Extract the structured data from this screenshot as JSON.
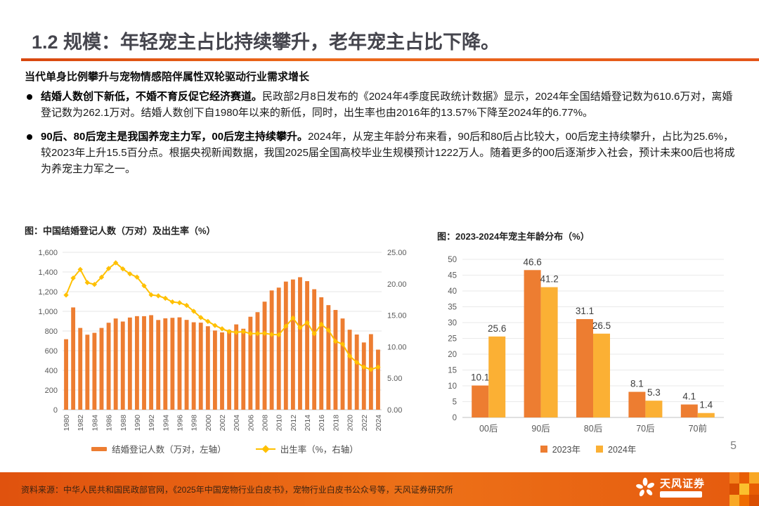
{
  "slide": {
    "title": "1.2 规模：年轻宠主占比持续攀升，老年宠主占比下降。",
    "page_number": "5"
  },
  "body": {
    "heading": "当代单身比例攀升与宠物情感陪伴属性双轮驱动行业需求增长",
    "bullets": [
      {
        "bold": "结婚人数创下新低，不婚不育反促它经济赛道。",
        "text": "民政部2月8日发布的《2024年4季度民政统计数据》显示，2024年全国结婚登记数为610.6万对，离婚登记数为262.1万对。结婚人数创下自1980年以来的新低，同时，出生率也由2016年的13.57%下降至2024年的6.77%。"
      },
      {
        "bold": "90后、80后宠主是我国养宠主力军，00后宠主持续攀升。",
        "text": "2024年，从宠主年龄分布来看，90后和80后占比较大，00后宠主持续攀升，占比为25.6%，较2023年上升15.5百分点。根据央视新闻数据，我国2025届全国高校毕业生规模预计1222万人。随着更多的00后逐渐步入社会，预计未来00后也将成为养宠主力军之一。"
      }
    ]
  },
  "footer": {
    "source": "资料来源：中华人民共和国民政部官网，《2025年中国宠物行业白皮书》，宠物行业白皮书公众号等，天风证券研究所",
    "logo_text": "天风证券"
  },
  "colors": {
    "accent_orange": "#ED7D31",
    "accent_yellow": "#FFC000",
    "bar_2024": "#FBB034",
    "underline": "#E4551A"
  },
  "chart_data": [
    {
      "type": "bar+line",
      "title": "图：中国结婚登记人数（万对）及出生率（%）",
      "x": [
        1980,
        1981,
        1982,
        1983,
        1984,
        1985,
        1986,
        1987,
        1988,
        1989,
        1990,
        1991,
        1992,
        1993,
        1994,
        1995,
        1996,
        1997,
        1998,
        1999,
        2000,
        2001,
        2002,
        2003,
        2004,
        2005,
        2006,
        2007,
        2008,
        2009,
        2010,
        2011,
        2012,
        2013,
        2014,
        2015,
        2016,
        2017,
        2018,
        2019,
        2020,
        2021,
        2022,
        2023,
        2024
      ],
      "x_tick_every": 2,
      "left_axis": {
        "min": 0,
        "max": 1600,
        "step": 200,
        "tick_labels": [
          "1,600",
          "1,400",
          "1,200",
          "1,000",
          "800",
          "600",
          "400",
          "200",
          "0"
        ]
      },
      "right_axis": {
        "min": 0,
        "max": 25,
        "step": 5,
        "tick_labels": [
          "25.00",
          "20.00",
          "15.00",
          "10.00",
          "5.00",
          "0.00"
        ]
      },
      "series": [
        {
          "name": "结婚登记人数（万对，左轴）",
          "chart": "bar",
          "axis": "left",
          "color": "#ED7D31",
          "values": [
            716.6,
            1039.7,
            831.2,
            762.6,
            781.5,
            831.3,
            884.0,
            927.3,
            896.3,
            937.0,
            951.1,
            950.7,
            961.0,
            912.0,
            929.0,
            934.1,
            938.9,
            913.0,
            888.8,
            885.0,
            848.5,
            805.0,
            786.0,
            811.4,
            867.2,
            823.1,
            945.0,
            991.4,
            1098.3,
            1212.2,
            1241.0,
            1302.4,
            1323.6,
            1346.9,
            1306.7,
            1224.7,
            1142.8,
            1063.1,
            1013.9,
            927.3,
            813.1,
            764.3,
            683.5,
            768.0,
            610.6
          ]
        },
        {
          "name": "出生率（%，右轴）",
          "chart": "line",
          "axis": "right",
          "color": "#FFC000",
          "values": [
            18.21,
            20.91,
            22.28,
            20.19,
            19.9,
            21.04,
            22.43,
            23.33,
            22.37,
            21.58,
            21.06,
            19.68,
            18.24,
            18.09,
            17.7,
            17.12,
            16.98,
            16.57,
            15.64,
            14.64,
            14.03,
            13.38,
            12.86,
            12.41,
            12.29,
            12.4,
            12.09,
            12.1,
            12.14,
            11.95,
            11.9,
            13.27,
            14.57,
            13.03,
            13.83,
            12.07,
            13.57,
            12.64,
            10.86,
            10.41,
            8.52,
            7.52,
            6.77,
            6.39,
            6.77
          ]
        }
      ]
    },
    {
      "type": "bar",
      "title": "图：2023-2024年宠主年龄分布（%）",
      "categories": [
        "00后",
        "90后",
        "80后",
        "70后",
        "70前"
      ],
      "y_axis": {
        "min": 0,
        "max": 50,
        "step": 5
      },
      "series": [
        {
          "name": "2023年",
          "color": "#ED7D31",
          "values": [
            10.1,
            46.6,
            31.1,
            8.1,
            4.1
          ]
        },
        {
          "name": "2024年",
          "color": "#FBB034",
          "values": [
            25.6,
            41.2,
            26.5,
            5.3,
            1.4
          ]
        }
      ]
    }
  ]
}
